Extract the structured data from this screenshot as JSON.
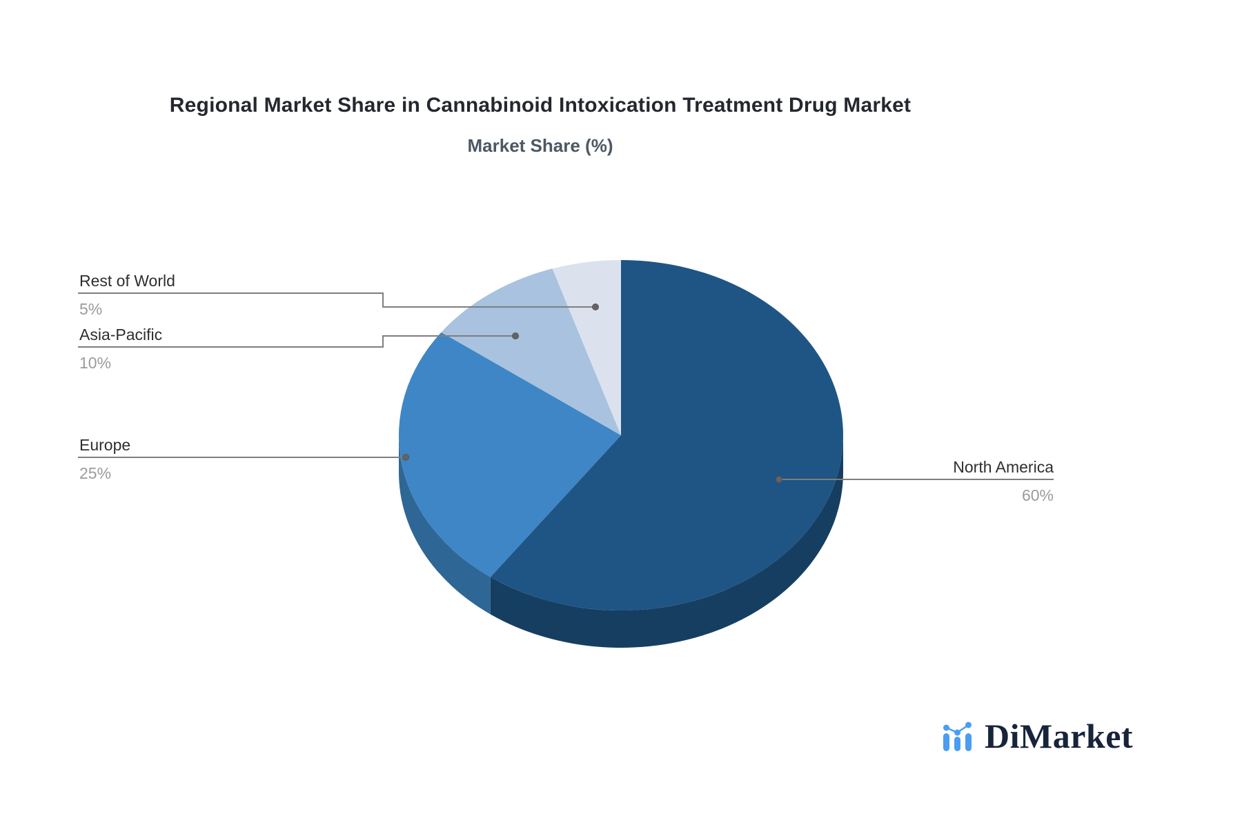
{
  "title": "Regional Market Share in Cannabinoid Intoxication Treatment Drug Market",
  "subtitle": "Market Share (%)",
  "brand": {
    "name": "DiMarket",
    "icon": "bar-chart-logo-icon",
    "icon_color": "#4A9DF2",
    "text_color": "#18243A"
  },
  "chart_data": {
    "type": "pie",
    "title": "Regional Market Share in Cannabinoid Intoxication Treatment Drug Market",
    "subtitle": "Market Share (%)",
    "unit": "%",
    "effect": "3d",
    "start_angle_deg": 0,
    "direction": "clockwise",
    "legend": "none",
    "slices": [
      {
        "name": "North America",
        "value": 60,
        "label": "60%",
        "color": "#1F5585",
        "side_color": "#163E61"
      },
      {
        "name": "Europe",
        "value": 25,
        "label": "25%",
        "color": "#3E86C6",
        "side_color": "#2E6795"
      },
      {
        "name": "Asia-Pacific",
        "value": 10,
        "label": "10%",
        "color": "#A8C2DF",
        "side_color": "#7FA6C9"
      },
      {
        "name": "Rest of World",
        "value": 5,
        "label": "5%",
        "color": "#DBE2EE",
        "side_color": "#B5BFCF"
      }
    ],
    "label_style": {
      "name_color": "#2E2E2E",
      "value_color": "#9B9B9B",
      "connector_color": "#7E7E7E",
      "dot_color": "#646464"
    }
  }
}
